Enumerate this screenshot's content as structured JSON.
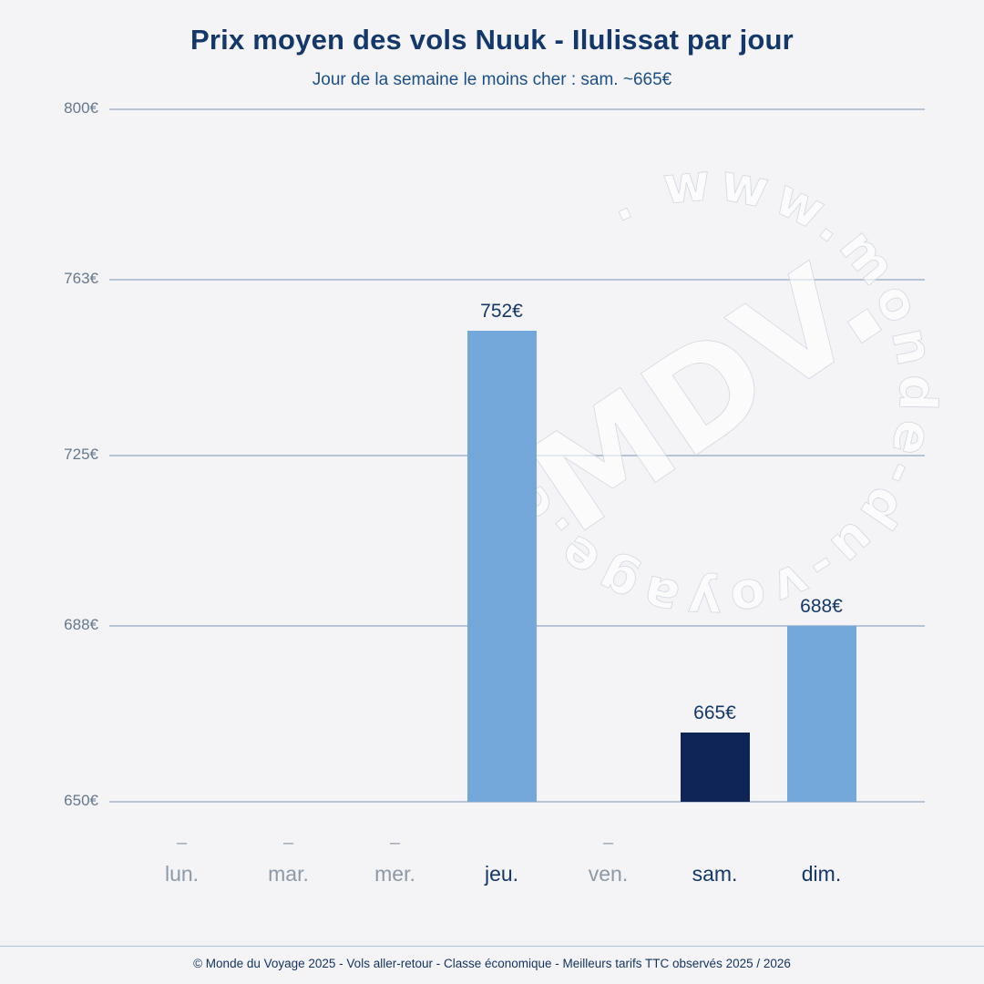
{
  "chart_data": {
    "type": "bar",
    "title": "Prix moyen des vols Nuuk - Ilulissat par jour",
    "subtitle": "Jour de la semaine le moins cher : sam. ~665€",
    "categories": [
      "lun.",
      "mar.",
      "mer.",
      "jeu.",
      "ven.",
      "sam.",
      "dim."
    ],
    "values": [
      null,
      null,
      null,
      752,
      null,
      665,
      688
    ],
    "value_labels": [
      "",
      "",
      "",
      "752€",
      "",
      "665€",
      "688€"
    ],
    "no_data_marker": "–",
    "currency": "€",
    "ylim": [
      650,
      800
    ],
    "yticks": [
      {
        "value": 800,
        "label": "800€"
      },
      {
        "value": 763,
        "label": "763€"
      },
      {
        "value": 725,
        "label": "725€"
      },
      {
        "value": 688,
        "label": "688€"
      },
      {
        "value": 650,
        "label": "650€"
      }
    ],
    "xlabel": "",
    "ylabel": "",
    "grid": "horizontal",
    "legend": "none",
    "bar_color": "#74a7da",
    "highlight_color": "#0f2558",
    "highlight_index": 5,
    "cheapest_day": "sam.",
    "cheapest_price": "665€"
  },
  "watermark": {
    "ring_text": ". www.monde-du-voyage.com",
    "center_text": "MDV."
  },
  "footer": {
    "text": "© Monde du Voyage 2025 - Vols aller-retour - Classe économique - Meilleurs tarifs TTC observés 2025 / 2026"
  },
  "colors": {
    "background": "#f4f4f6",
    "title": "#14386a",
    "subtitle": "#1c4f86",
    "gridline": "#b7c4d5",
    "y_tick": "#66788c",
    "bar_light": "#74a7da",
    "bar_dark": "#0f2558",
    "day_active": "#14386a",
    "day_inactive": "#8d99a6",
    "footer_line": "#a9c4dd",
    "footer_text": "#12335f"
  }
}
